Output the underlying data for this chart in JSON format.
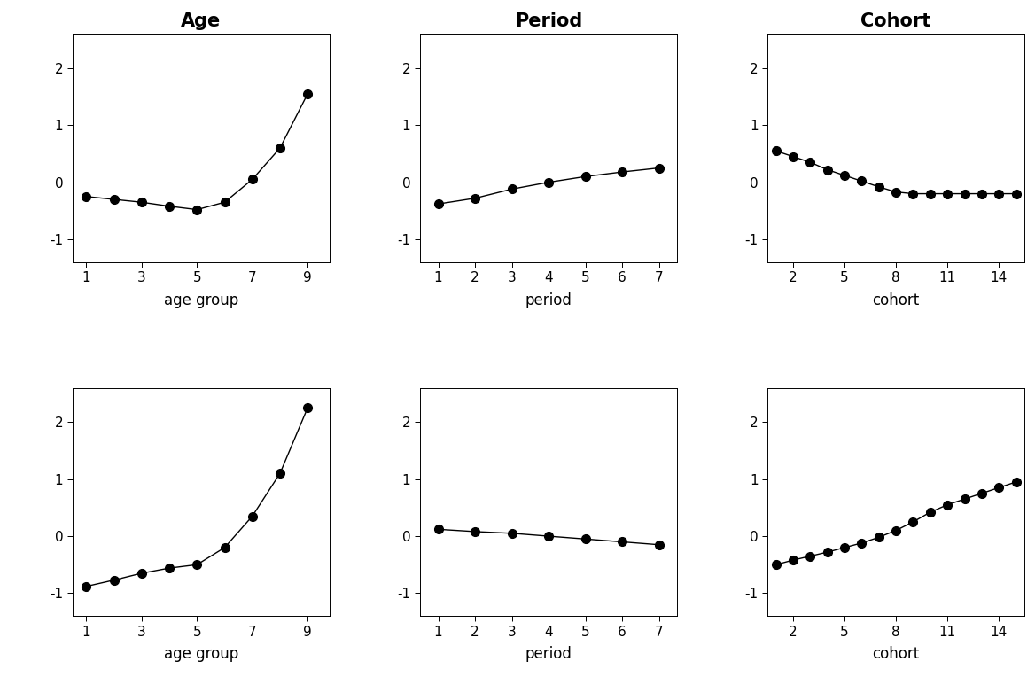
{
  "row1": {
    "age": {
      "title": "Age",
      "xlabel": "age group",
      "x": [
        1,
        2,
        3,
        4,
        5,
        6,
        7,
        8,
        9
      ],
      "y": [
        -0.25,
        -0.3,
        -0.35,
        -0.42,
        -0.48,
        -0.35,
        0.05,
        0.6,
        1.55
      ],
      "xticks": [
        1,
        3,
        5,
        7,
        9
      ],
      "yticks": [
        -1,
        0,
        1,
        2
      ],
      "ylim": [
        -1.4,
        2.6
      ],
      "xlim": [
        0.5,
        9.8
      ]
    },
    "period": {
      "title": "Period",
      "xlabel": "period",
      "x": [
        1,
        2,
        3,
        4,
        5,
        6,
        7
      ],
      "y": [
        -0.38,
        -0.28,
        -0.12,
        0.0,
        0.1,
        0.18,
        0.25
      ],
      "xticks": [
        1,
        2,
        3,
        4,
        5,
        6,
        7
      ],
      "yticks": [
        -1,
        0,
        1,
        2
      ],
      "ylim": [
        -1.4,
        2.6
      ],
      "xlim": [
        0.5,
        7.5
      ]
    },
    "cohort": {
      "title": "Cohort",
      "xlabel": "cohort",
      "x": [
        1,
        2,
        3,
        4,
        5,
        6,
        7,
        8,
        9,
        10,
        11,
        12,
        13,
        14,
        15
      ],
      "y": [
        0.55,
        0.45,
        0.35,
        0.22,
        0.12,
        0.02,
        -0.08,
        -0.17,
        -0.2,
        -0.2,
        -0.2,
        -0.2,
        -0.2,
        -0.2,
        -0.2
      ],
      "xticks": [
        2,
        5,
        8,
        11,
        14
      ],
      "yticks": [
        -1,
        0,
        1,
        2
      ],
      "ylim": [
        -1.4,
        2.6
      ],
      "xlim": [
        0.5,
        15.5
      ]
    }
  },
  "row2": {
    "age": {
      "title": "",
      "xlabel": "age group",
      "x": [
        1,
        2,
        3,
        4,
        5,
        6,
        7,
        8,
        9
      ],
      "y": [
        -0.88,
        -0.77,
        -0.65,
        -0.56,
        -0.5,
        -0.2,
        0.35,
        1.1,
        2.25
      ],
      "xticks": [
        1,
        3,
        5,
        7,
        9
      ],
      "yticks": [
        -1,
        0,
        1,
        2
      ],
      "ylim": [
        -1.4,
        2.6
      ],
      "xlim": [
        0.5,
        9.8
      ]
    },
    "period": {
      "title": "",
      "xlabel": "period",
      "x": [
        1,
        2,
        3,
        4,
        5,
        6,
        7
      ],
      "y": [
        0.12,
        0.08,
        0.05,
        0.0,
        -0.05,
        -0.1,
        -0.15
      ],
      "xticks": [
        1,
        2,
        3,
        4,
        5,
        6,
        7
      ],
      "yticks": [
        -1,
        0,
        1,
        2
      ],
      "ylim": [
        -1.4,
        2.6
      ],
      "xlim": [
        0.5,
        7.5
      ]
    },
    "cohort": {
      "title": "",
      "xlabel": "cohort",
      "x": [
        1,
        2,
        3,
        4,
        5,
        6,
        7,
        8,
        9,
        10,
        11,
        12,
        13,
        14,
        15
      ],
      "y": [
        -0.5,
        -0.42,
        -0.35,
        -0.28,
        -0.2,
        -0.12,
        -0.02,
        0.1,
        0.25,
        0.42,
        0.55,
        0.65,
        0.75,
        0.85,
        0.95
      ],
      "xticks": [
        2,
        5,
        8,
        11,
        14
      ],
      "yticks": [
        -1,
        0,
        1,
        2
      ],
      "ylim": [
        -1.4,
        2.6
      ],
      "xlim": [
        0.5,
        15.5
      ]
    }
  },
  "line_color": "#000000",
  "marker_color": "#000000",
  "marker_size": 7,
  "line_width": 1.0,
  "background_color": "#ffffff",
  "title_fontsize": 15,
  "label_fontsize": 12,
  "tick_fontsize": 11
}
